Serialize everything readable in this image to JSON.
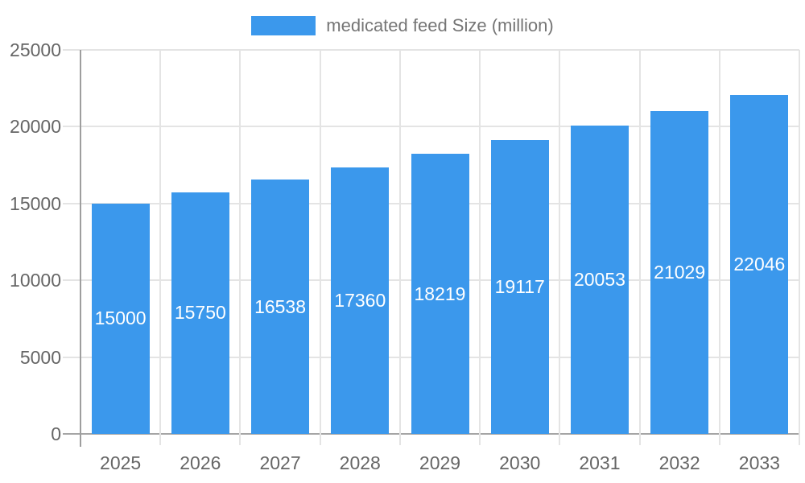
{
  "chart_data": {
    "type": "bar",
    "legend": "medicated feed Size (million)",
    "categories": [
      "2025",
      "2026",
      "2027",
      "2028",
      "2029",
      "2030",
      "2031",
      "2032",
      "2033"
    ],
    "values": [
      15000,
      15750,
      16538,
      17360,
      18219,
      19117,
      20053,
      21029,
      22046
    ],
    "yticks": [
      0,
      5000,
      10000,
      15000,
      20000,
      25000
    ],
    "ylim": [
      0,
      25000
    ],
    "xlabel": "",
    "ylabel": "",
    "grid": true,
    "legend_position": "top",
    "value_labels": "inside-center",
    "colors": {
      "bar": "#3b98ec",
      "bar_value_text": "#ffffff",
      "gridline": "#e4e4e4",
      "axis_line": "#9e9e9e",
      "axis_text": "#666666",
      "legend_text": "#757575",
      "background": "#ffffff"
    }
  }
}
